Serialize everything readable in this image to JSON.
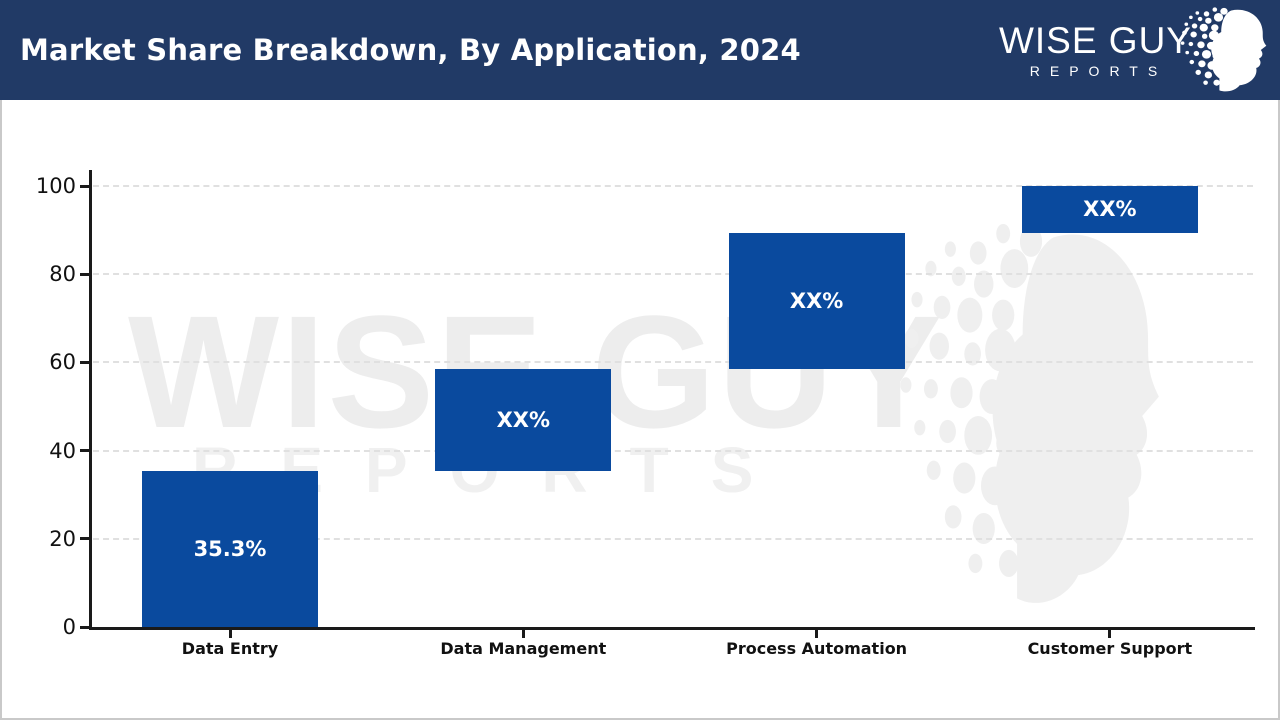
{
  "header": {
    "title": "Market Share Breakdown, By Application, 2024",
    "logo": {
      "name": "WISE GUY",
      "sub": "REPORTS"
    }
  },
  "watermark": {
    "line1": "WISE GUY",
    "line2": "REPORTS"
  },
  "chart_data": {
    "type": "bar",
    "subtype": "waterfall",
    "title": "Market Share Breakdown, By Application, 2024",
    "xlabel": "",
    "ylabel": "",
    "ylim": [
      0,
      104
    ],
    "yticks": [
      0,
      20,
      40,
      60,
      80,
      100
    ],
    "grid": "horizontal-dashed",
    "legend": "none",
    "categories": [
      "Data Entry",
      "Data Management",
      "Process Automation",
      "Customer Support"
    ],
    "segments": [
      {
        "category": "Data Entry",
        "start": 0,
        "end": 35.3,
        "label": "35.3%"
      },
      {
        "category": "Data Management",
        "start": 35.3,
        "end": 58.6,
        "label": "XX%"
      },
      {
        "category": "Process Automation",
        "start": 58.6,
        "end": 89.4,
        "label": "XX%"
      },
      {
        "category": "Customer Support",
        "start": 89.4,
        "end": 100,
        "label": "XX%"
      }
    ]
  },
  "colors": {
    "header_bg": "#213a66",
    "bar": "#0a4a9e",
    "bar_label": "#ffffff",
    "axis": "#1a1a1a",
    "grid": "#e0e0e0",
    "watermark": "#ededed",
    "border": "#c9c9c9",
    "tick_label": "#111111"
  }
}
